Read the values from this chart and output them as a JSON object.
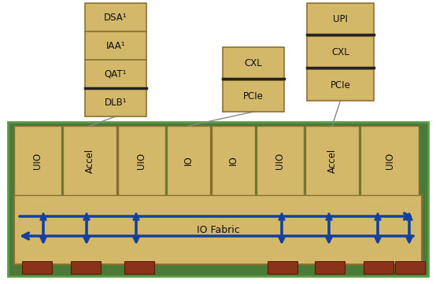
{
  "fig_width": 5.54,
  "fig_height": 3.61,
  "dpi": 100,
  "bg_outer": "#ffffff",
  "bg_green": "#4a7a38",
  "gold": "#d4b86a",
  "gold_edge": "#8b7230",
  "gold_edge_dark": "#222222",
  "brown": "#8b3318",
  "blue": "#1040a0",
  "text_color": "#111111",
  "conn_color": "#888888",
  "tile_labels": [
    "UIO",
    "Accel",
    "UIO",
    "IO",
    "IO",
    "UIO",
    "Accel",
    "UIO"
  ],
  "popup1_labels": [
    "DSA¹",
    "IAA¹",
    "QAT¹",
    "DLB¹"
  ],
  "popup2_labels": [
    "CXL",
    "PCIe"
  ],
  "popup3_labels": [
    "UPI",
    "CXL",
    "PCIe"
  ],
  "io_fabric_label": "IO Fabric"
}
